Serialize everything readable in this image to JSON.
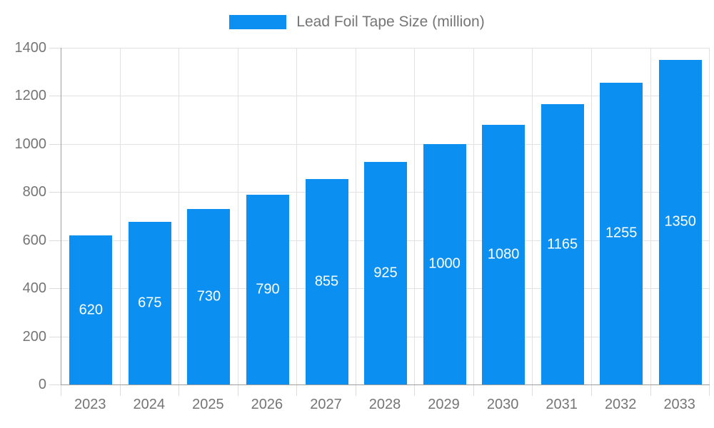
{
  "legend": {
    "label": "Lead Foil Tape Size (million)"
  },
  "chart_data": {
    "type": "bar",
    "title": "Lead Foil Tape Size (million)",
    "categories": [
      "2023",
      "2024",
      "2025",
      "2026",
      "2027",
      "2028",
      "2029",
      "2030",
      "2031",
      "2032",
      "2033"
    ],
    "values": [
      620,
      675,
      730,
      790,
      855,
      925,
      1000,
      1080,
      1165,
      1255,
      1350
    ],
    "xlabel": "",
    "ylabel": "",
    "ylim": [
      0,
      1400
    ],
    "yticks": [
      0,
      200,
      400,
      600,
      800,
      1000,
      1200,
      1400
    ],
    "grid": true,
    "legend_position": "top-center",
    "value_labels": "inside-center",
    "colors": {
      "bar": "#0b90f2",
      "value_label": "#ffffff",
      "axis_text": "#757575",
      "grid_line": "#e2e2e2",
      "tick_line": "#dcdcdc",
      "axis_line": "#9e9e9e"
    }
  }
}
